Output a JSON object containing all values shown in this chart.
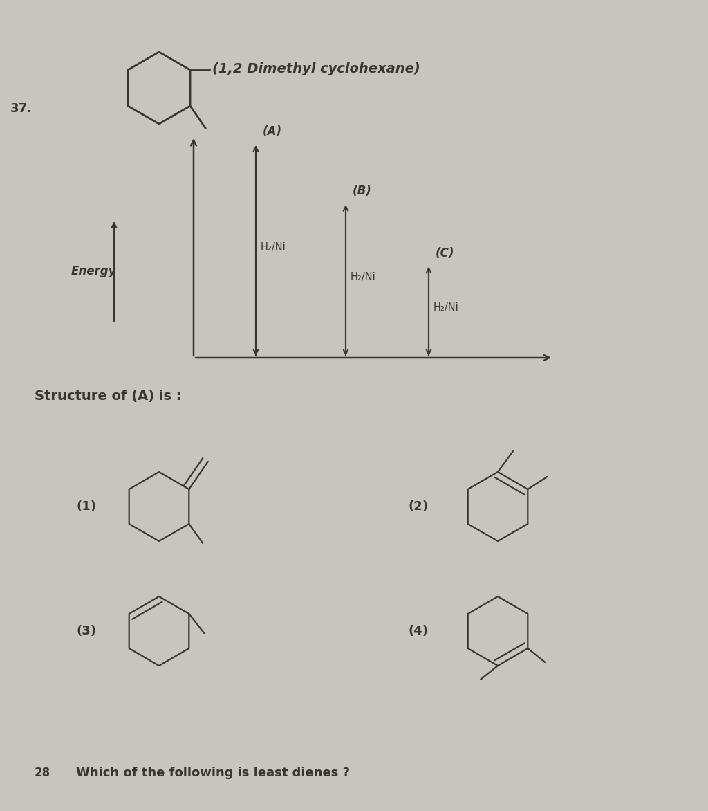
{
  "background_color": "#c8c4be",
  "title_text": "(1,2 Dimethyl cyclohexane)",
  "question_num": "37.",
  "structure_question": "Structure of (A) is :",
  "energy_label": "Energy",
  "h2ni_labels": [
    "H₂/Ni",
    "H₂/Ni",
    "H₂/Ni"
  ],
  "bar_labels": [
    "(A)",
    "(B)",
    "(C)"
  ],
  "option_labels": [
    "(1)",
    "(2)",
    "(3)",
    "(4)"
  ],
  "bottom_text": "Which of the following is least dienes ?"
}
